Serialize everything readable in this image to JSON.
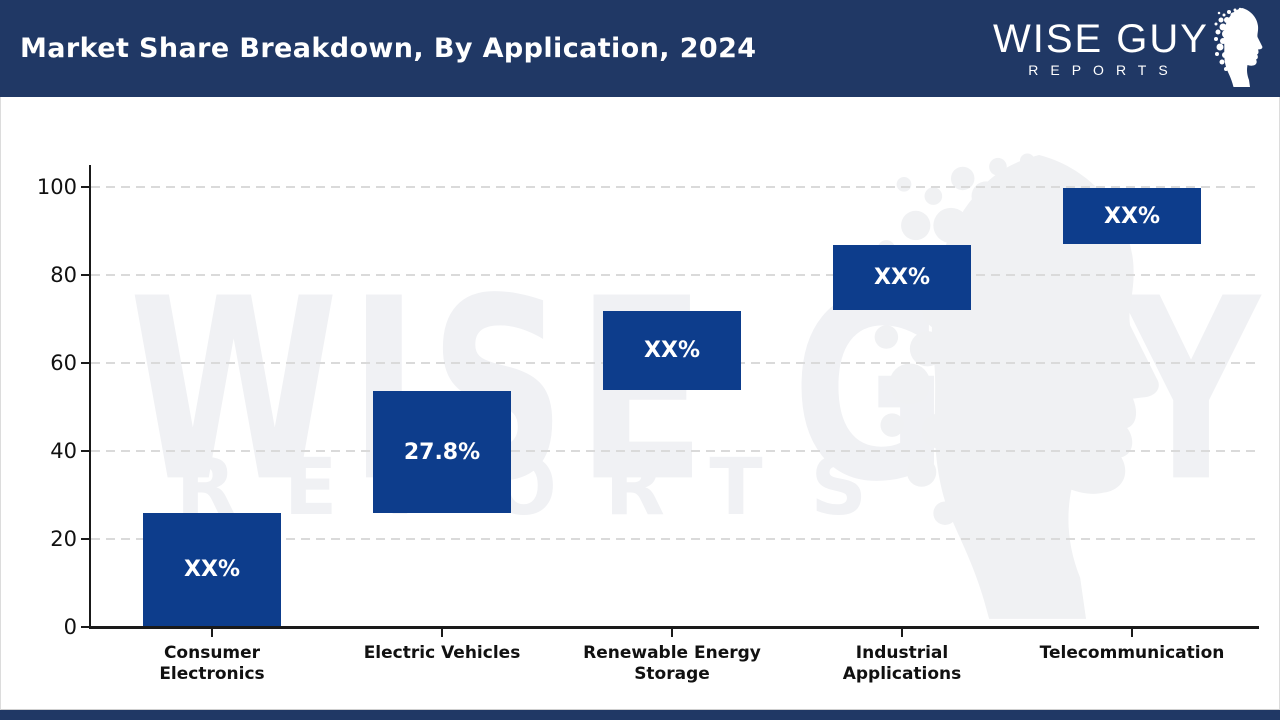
{
  "header": {
    "title": "Market Share Breakdown, By Application, 2024",
    "bg_color": "#203865",
    "brand": {
      "line1": "WISE GUY",
      "line2": "REPORTS"
    }
  },
  "watermark": {
    "line1": "WISE GUY",
    "line2": "REPORTS",
    "text_color": "#f0f1f4",
    "face_color": "#f0f1f3"
  },
  "chart_data": {
    "type": "bar",
    "subtype": "waterfall-floating",
    "title": "Market Share Breakdown, By Application, 2024",
    "categories": [
      "Consumer Electronics",
      "Electric Vehicles",
      "Renewable Energy Storage",
      "Industrial Applications",
      "Telecommunication"
    ],
    "categories_display": [
      "Consumer\nElectronics",
      "Electric Vehicles",
      "Renewable Energy\nStorage",
      "Industrial\nApplications",
      "Telecommunication"
    ],
    "bars": [
      {
        "category": "Consumer Electronics",
        "start": 0,
        "end": 26.0,
        "label": "XX%"
      },
      {
        "category": "Electric Vehicles",
        "start": 25.8,
        "end": 53.6,
        "label": "27.8%"
      },
      {
        "category": "Renewable Energy Storage",
        "start": 53.9,
        "end": 71.8,
        "label": "XX%"
      },
      {
        "category": "Industrial Applications",
        "start": 72.0,
        "end": 86.9,
        "label": "XX%"
      },
      {
        "category": "Telecommunication",
        "start": 87.0,
        "end": 99.8,
        "label": "XX%"
      }
    ],
    "yticks": [
      0,
      20,
      40,
      60,
      80,
      100
    ],
    "ylim": [
      0,
      105
    ],
    "xlabel": "",
    "ylabel": "",
    "grid": "horizontal-dashed",
    "legend": "none",
    "bar_color": "#0d3d8c",
    "bar_label_color": "#ffffff",
    "axis_color": "#1a1a1a",
    "grid_color": "#dadada",
    "tick_label_color": "#111111"
  },
  "footer": {
    "bg_color": "#203865"
  }
}
